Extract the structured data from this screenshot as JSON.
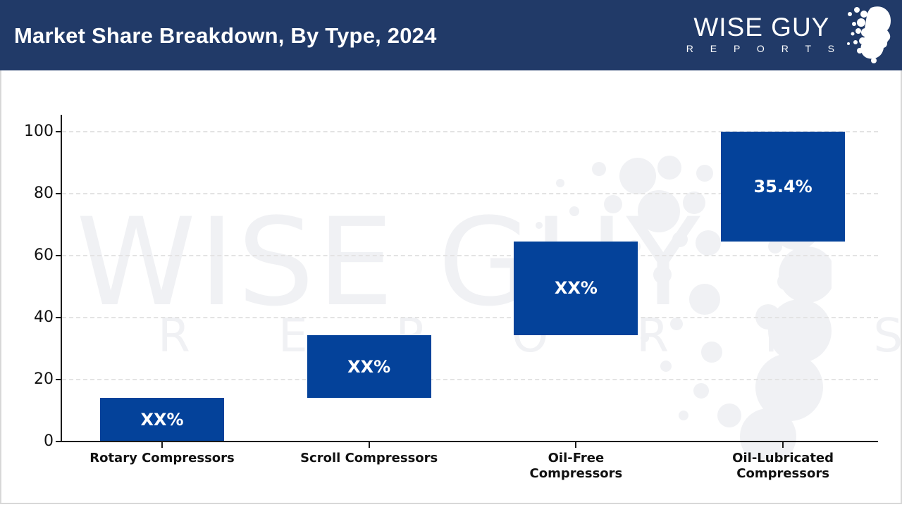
{
  "header": {
    "title": "Market Share Breakdown, By Type, 2024",
    "logo": {
      "line1": "WISE GUY",
      "line2": "REPORTS"
    }
  },
  "watermark": {
    "line1": "WISE GUY",
    "line2": "REPORTS"
  },
  "chart_data": {
    "type": "bar",
    "subtype": "waterfall (floating segments)",
    "title": "Market Share Breakdown, By Type, 2024",
    "categories": [
      "Rotary Compressors",
      "Scroll Compressors",
      "Oil-Free\nCompressors",
      "Oil-Lubricated\nCompressors"
    ],
    "segments": [
      {
        "label": "XX%",
        "start": 0,
        "end": 14.1
      },
      {
        "label": "XX%",
        "start": 14.1,
        "end": 34.3
      },
      {
        "label": "XX%",
        "start": 34.3,
        "end": 64.6
      },
      {
        "label": "35.4%",
        "start": 64.6,
        "end": 100
      }
    ],
    "values_increment": [
      14.1,
      20.2,
      30.3,
      35.4
    ],
    "ylim": [
      0,
      100
    ],
    "yticks": [
      0,
      20,
      40,
      60,
      80,
      100
    ],
    "grid": "horizontal dashed",
    "legend": "none",
    "xlabel": "",
    "ylabel": ""
  },
  "colors": {
    "header_bg": "#213a68",
    "bar": "#04429a",
    "bar_label_text": "#ffffff",
    "grid": "#e3e3e3",
    "axis": "#1a1a1a",
    "watermark": "#f0f1f4",
    "frame_border": "#d8d8d8",
    "title_text": "#ffffff"
  }
}
